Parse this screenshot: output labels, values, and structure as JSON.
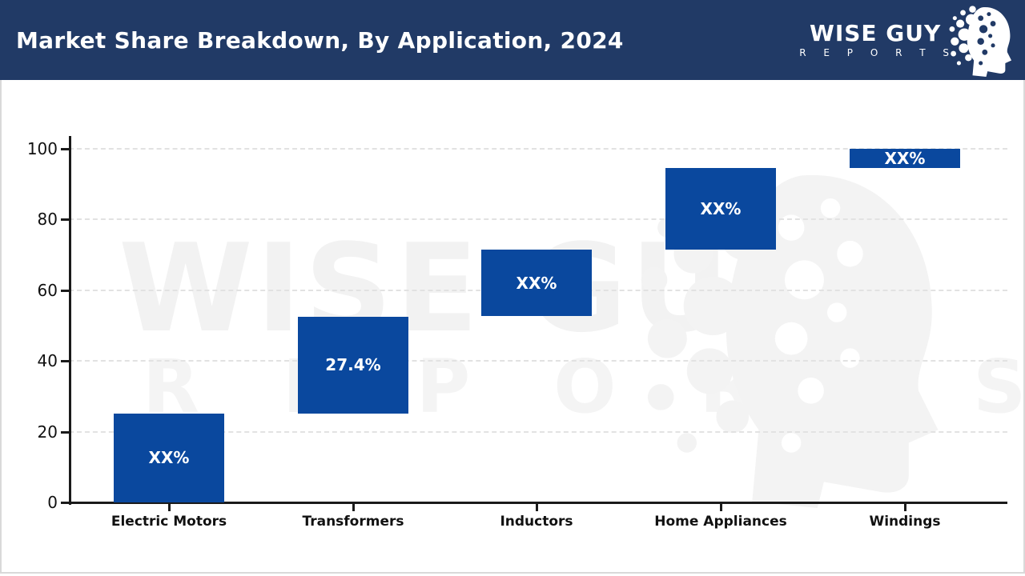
{
  "header": {
    "title": "Market Share Breakdown, By Application, 2024",
    "logo": {
      "line1": "WISE GUY",
      "line2": "R E P O R T S"
    }
  },
  "watermark": {
    "line1": "WISE GUY",
    "line2": "R E P O R T S"
  },
  "chart_data": {
    "type": "bar",
    "subtype": "waterfall",
    "title": "Market Share Breakdown, By Application, 2024",
    "xlabel": "",
    "ylabel": "",
    "categories": [
      "Electric Motors",
      "Transformers",
      "Inductors",
      "Home Appliances",
      "Windings"
    ],
    "segments": [
      {
        "category": "Electric Motors",
        "start": 0,
        "end": 25.2,
        "label": "XX%"
      },
      {
        "category": "Transformers",
        "start": 25.2,
        "end": 52.6,
        "label": "27.4%"
      },
      {
        "category": "Inductors",
        "start": 52.6,
        "end": 71.6,
        "label": "XX%"
      },
      {
        "category": "Home Appliances",
        "start": 71.6,
        "end": 94.6,
        "label": "XX%"
      },
      {
        "category": "Windings",
        "start": 94.6,
        "end": 100,
        "label": "XX%"
      }
    ],
    "yticks": [
      0,
      20,
      40,
      60,
      80,
      100
    ],
    "ylim": [
      0,
      104
    ],
    "grid": "horizontal dashed",
    "legend": "none",
    "bar_color": "#0a489e",
    "bar_label_color": "#ffffff"
  },
  "colors": {
    "header_bg": "#213a66",
    "bar": "#0a489e",
    "axis": "#1a1a1a",
    "gridline": "#e2e2e2",
    "watermark": "#f2f2f2",
    "frame_border": "#d9d9d9"
  }
}
